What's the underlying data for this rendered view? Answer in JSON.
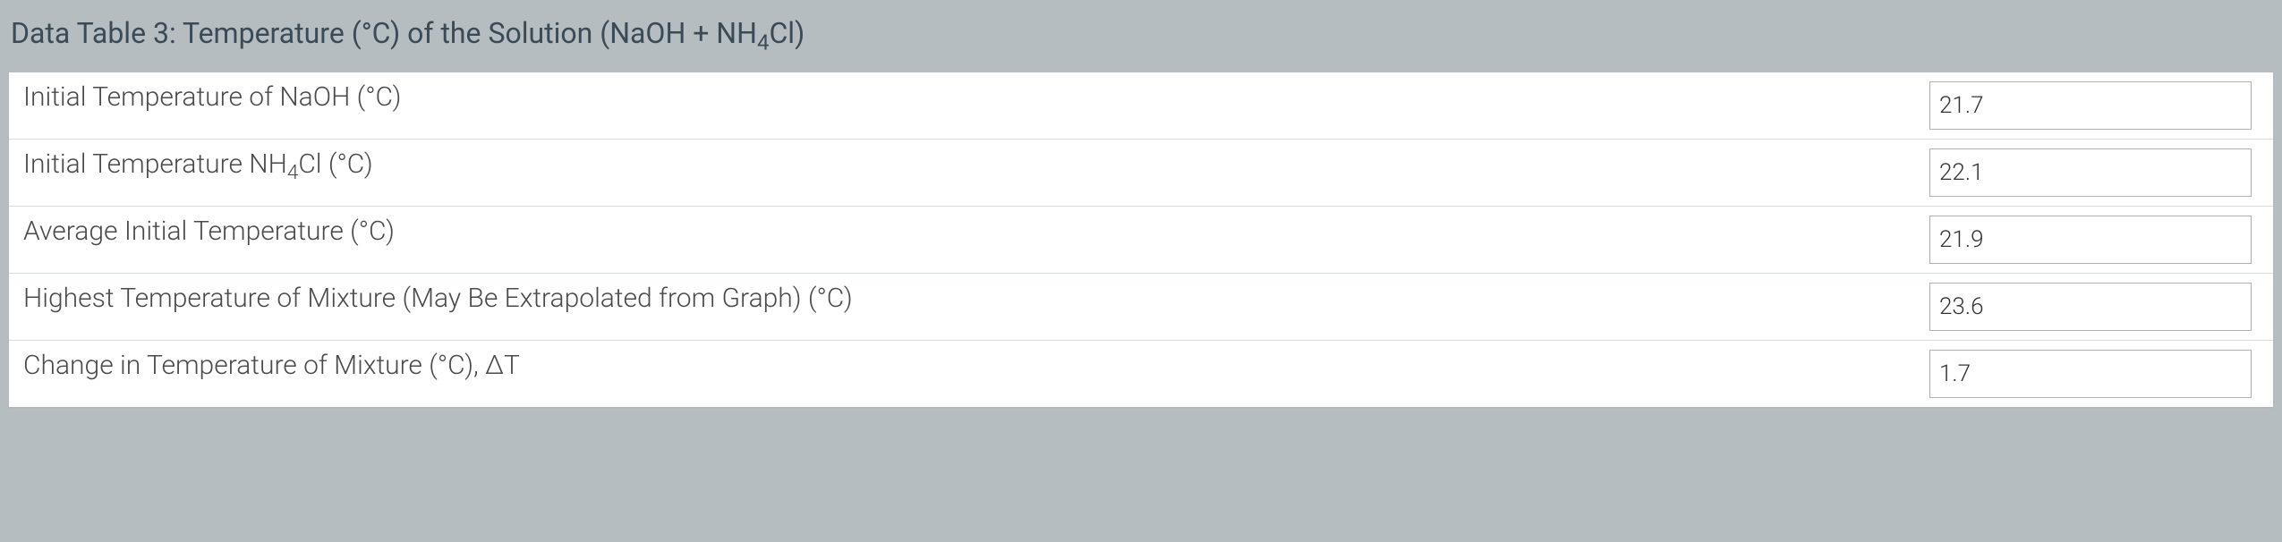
{
  "table": {
    "title_prefix": "Data Table 3: Temperature (°C) of the Solution (NaOH + NH",
    "title_sub": "4",
    "title_suffix": "Cl)",
    "rows": [
      {
        "label_prefix": "Initial Temperature of NaOH (°C)",
        "label_sub": "",
        "label_suffix": "",
        "value": "21.7"
      },
      {
        "label_prefix": "Initial Temperature NH",
        "label_sub": "4",
        "label_suffix": "Cl (°C)",
        "value": "22.1"
      },
      {
        "label_prefix": "Average Initial Temperature (°C)",
        "label_sub": "",
        "label_suffix": "",
        "value": "21.9"
      },
      {
        "label_prefix": "Highest Temperature of Mixture (May Be Extrapolated from Graph) (°C)",
        "label_sub": "",
        "label_suffix": "",
        "value": "23.6"
      },
      {
        "label_prefix": "Change in Temperature of Mixture (°C), ΔT",
        "label_sub": "",
        "label_suffix": "",
        "value": "1.7"
      }
    ]
  },
  "colors": {
    "page_bg": "#b6bdc1",
    "table_bg": "#ffffff",
    "title_color": "#3a4a56",
    "label_color": "#4a4a4a",
    "border_color": "#d8dde0",
    "input_border": "#b0b0b0"
  }
}
